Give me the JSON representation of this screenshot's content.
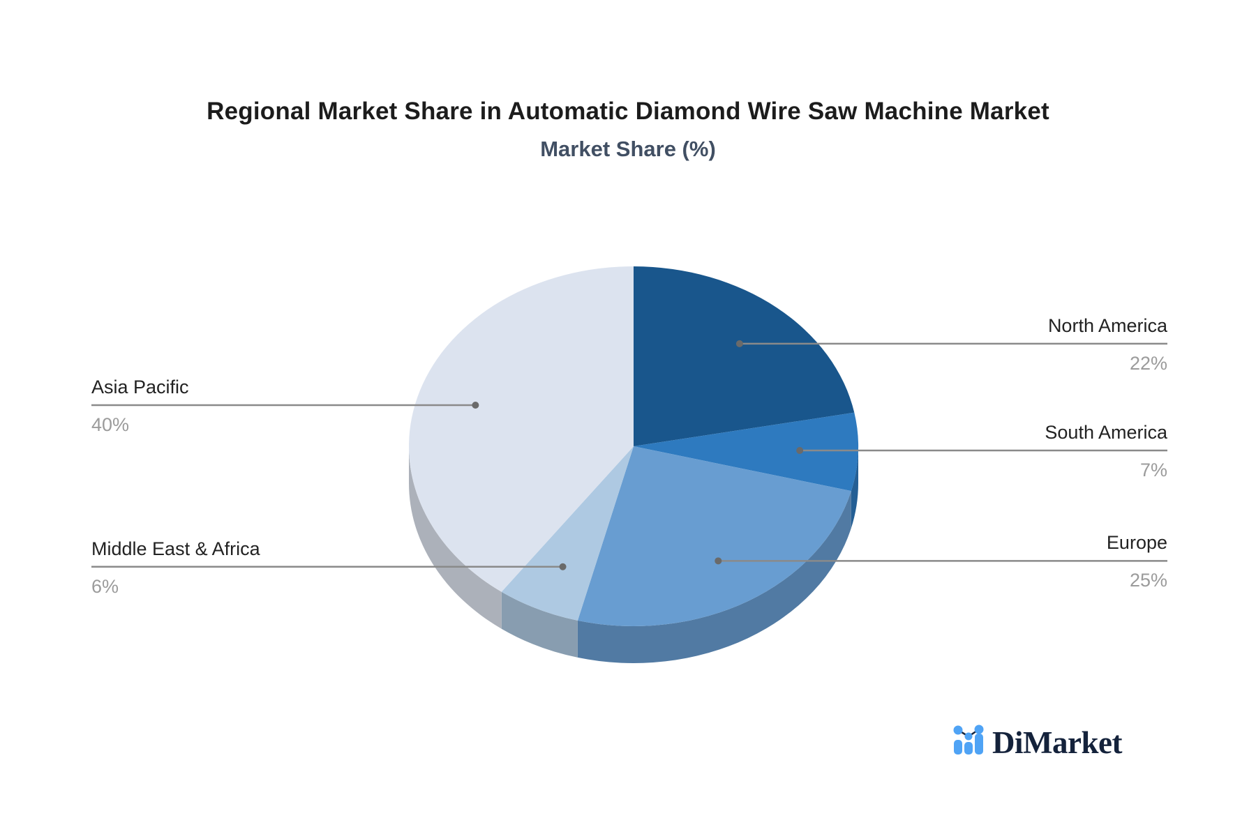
{
  "header": {
    "title": "Regional Market Share in Automatic Diamond Wire Saw Machine Market",
    "subtitle": "Market Share (%)"
  },
  "chart_data": {
    "type": "pie",
    "title": "Regional Market Share in Automatic Diamond Wire Saw Machine Market",
    "subtitle": "Market Share (%)",
    "unit": "%",
    "effect": "3d",
    "direction": "clockwise",
    "start_angle_deg": 0,
    "legend_position": "callout-labels",
    "categories": [
      "North America",
      "South America",
      "Europe",
      "Middle East & Africa",
      "Asia Pacific"
    ],
    "values": [
      22,
      7,
      25,
      6,
      40
    ],
    "colors": [
      "#19568C",
      "#2E7ABF",
      "#689DD1",
      "#AEC9E2",
      "#DCE3EF"
    ],
    "labels": [
      {
        "name": "North America",
        "value_label": "22%",
        "side": "right"
      },
      {
        "name": "South America",
        "value_label": "7%",
        "side": "right"
      },
      {
        "name": "Europe",
        "value_label": "25%",
        "side": "right"
      },
      {
        "name": "Middle East & Africa",
        "value_label": "6%",
        "side": "left"
      },
      {
        "name": "Asia Pacific",
        "value_label": "40%",
        "side": "left"
      }
    ],
    "callout_line_color": "#8a8a8a",
    "callout_dot_color": "#6a6a6a",
    "label_name_color": "#222222",
    "label_value_color": "#9b9b9b"
  },
  "branding": {
    "logo_text": "DiMarket",
    "logo_icon": "bar-chart-trend-icon",
    "logo_text_color": "#14223B",
    "logo_icon_color": "#4FA3F5",
    "logo_line_color": "#16243C"
  },
  "theme": {
    "background": "#ffffff",
    "title_color": "#1c1c1c",
    "subtitle_color": "#414F63"
  }
}
